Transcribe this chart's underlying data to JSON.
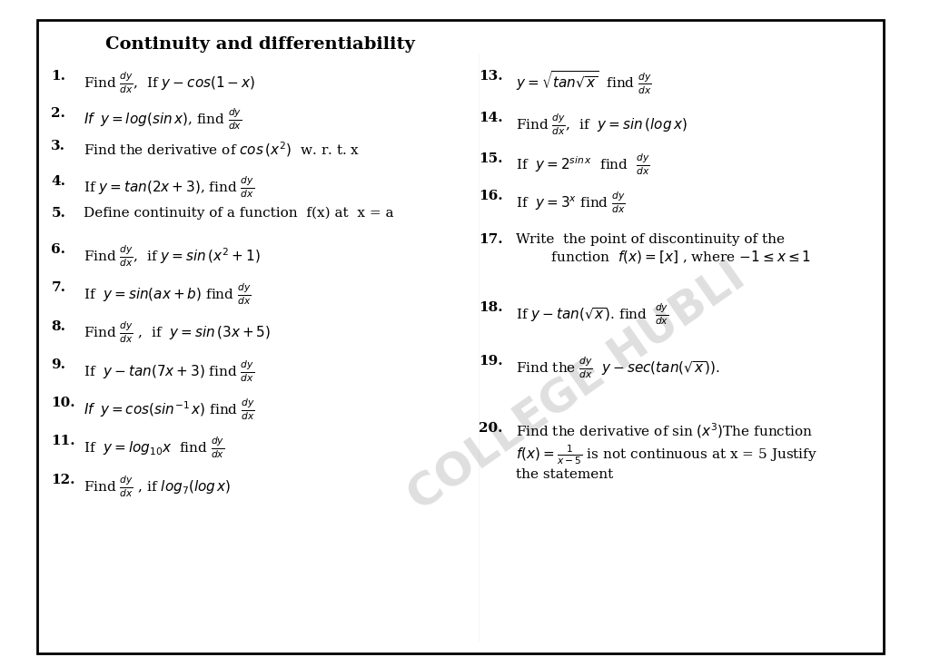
{
  "title": "Continuity and differentiability",
  "background_color": "#ffffff",
  "border_color": "#000000",
  "text_color": "#000000",
  "watermark": "COLLEGE HUBLI",
  "left_questions": [
    {
      "num": "1.",
      "text": "Find $\\frac{dy}{dx}$,  If $y - cos(1-x)$"
    },
    {
      "num": "2.",
      "text": "$If\\;\\; y = log(sin\\,x)$, find $\\frac{dy}{dx}$"
    },
    {
      "num": "3.",
      "text": "Find the derivative of $cos\\,(x^2)$  w. r. t. x"
    },
    {
      "num": "4.",
      "text": "If $y = tan(2x + 3)$, find $\\frac{dy}{dx}$"
    },
    {
      "num": "5.",
      "text": "Define continuity of a function  f(x) at  x = a"
    },
    {
      "num": "6.",
      "text": "Find $\\frac{dy}{dx}$,  if $y = sin\\,(x^2 + 1)$"
    },
    {
      "num": "7.",
      "text": "If  $y = sin(ax + b)$ find $\\frac{dy}{dx}$"
    },
    {
      "num": "8.",
      "text": "Find $\\frac{dy}{dx}$ ,  if  $y = sin\\,(3x + 5)$"
    },
    {
      "num": "9.",
      "text": "If  $y - tan(7x + 3)$ find $\\frac{dy}{dx}$"
    },
    {
      "num": "10.",
      "text": "$If\\;\\; y = cos(sin^{-1}\\,x)$ find $\\frac{dy}{dx}$"
    },
    {
      "num": "11.",
      "text": "If  $y = log_{10}x$  find $\\frac{dy}{dx}$"
    },
    {
      "num": "12.",
      "text": "Find $\\frac{dy}{dx}$ , if $log_7(log\\,x)$"
    }
  ],
  "right_questions": [
    {
      "num": "13.",
      "text": "$y = \\sqrt{tan\\sqrt{x}}$  find $\\frac{dy}{dx}$"
    },
    {
      "num": "14.",
      "text": "Find $\\frac{dy}{dx}$,  if  $y = sin\\,(log\\,x)$"
    },
    {
      "num": "15.",
      "text": "If  $y = 2^{sin\\,x}$  find  $\\frac{dy}{dx}$"
    },
    {
      "num": "16.",
      "text": "If  $y = 3^x$ find $\\frac{dy}{dx}$"
    },
    {
      "num": "17.",
      "text": "Write  the point of discontinuity of the\n        function  $f(x) = [x]$ , where $-1 \\leq x \\leq 1$"
    },
    {
      "num": "18.",
      "text": "If $y - tan(\\sqrt{x})$. find  $\\frac{dy}{dx}$"
    },
    {
      "num": "19.",
      "text": "Find the $\\frac{dy}{dx}$  $y - sec(tan(\\sqrt{x}))$."
    },
    {
      "num": "20.",
      "text": "Find the derivative of sin $(x^3)$The function\n$f(x) = \\frac{1}{x-5}$ is not continuous at x = 5 Justify\nthe statement"
    }
  ]
}
